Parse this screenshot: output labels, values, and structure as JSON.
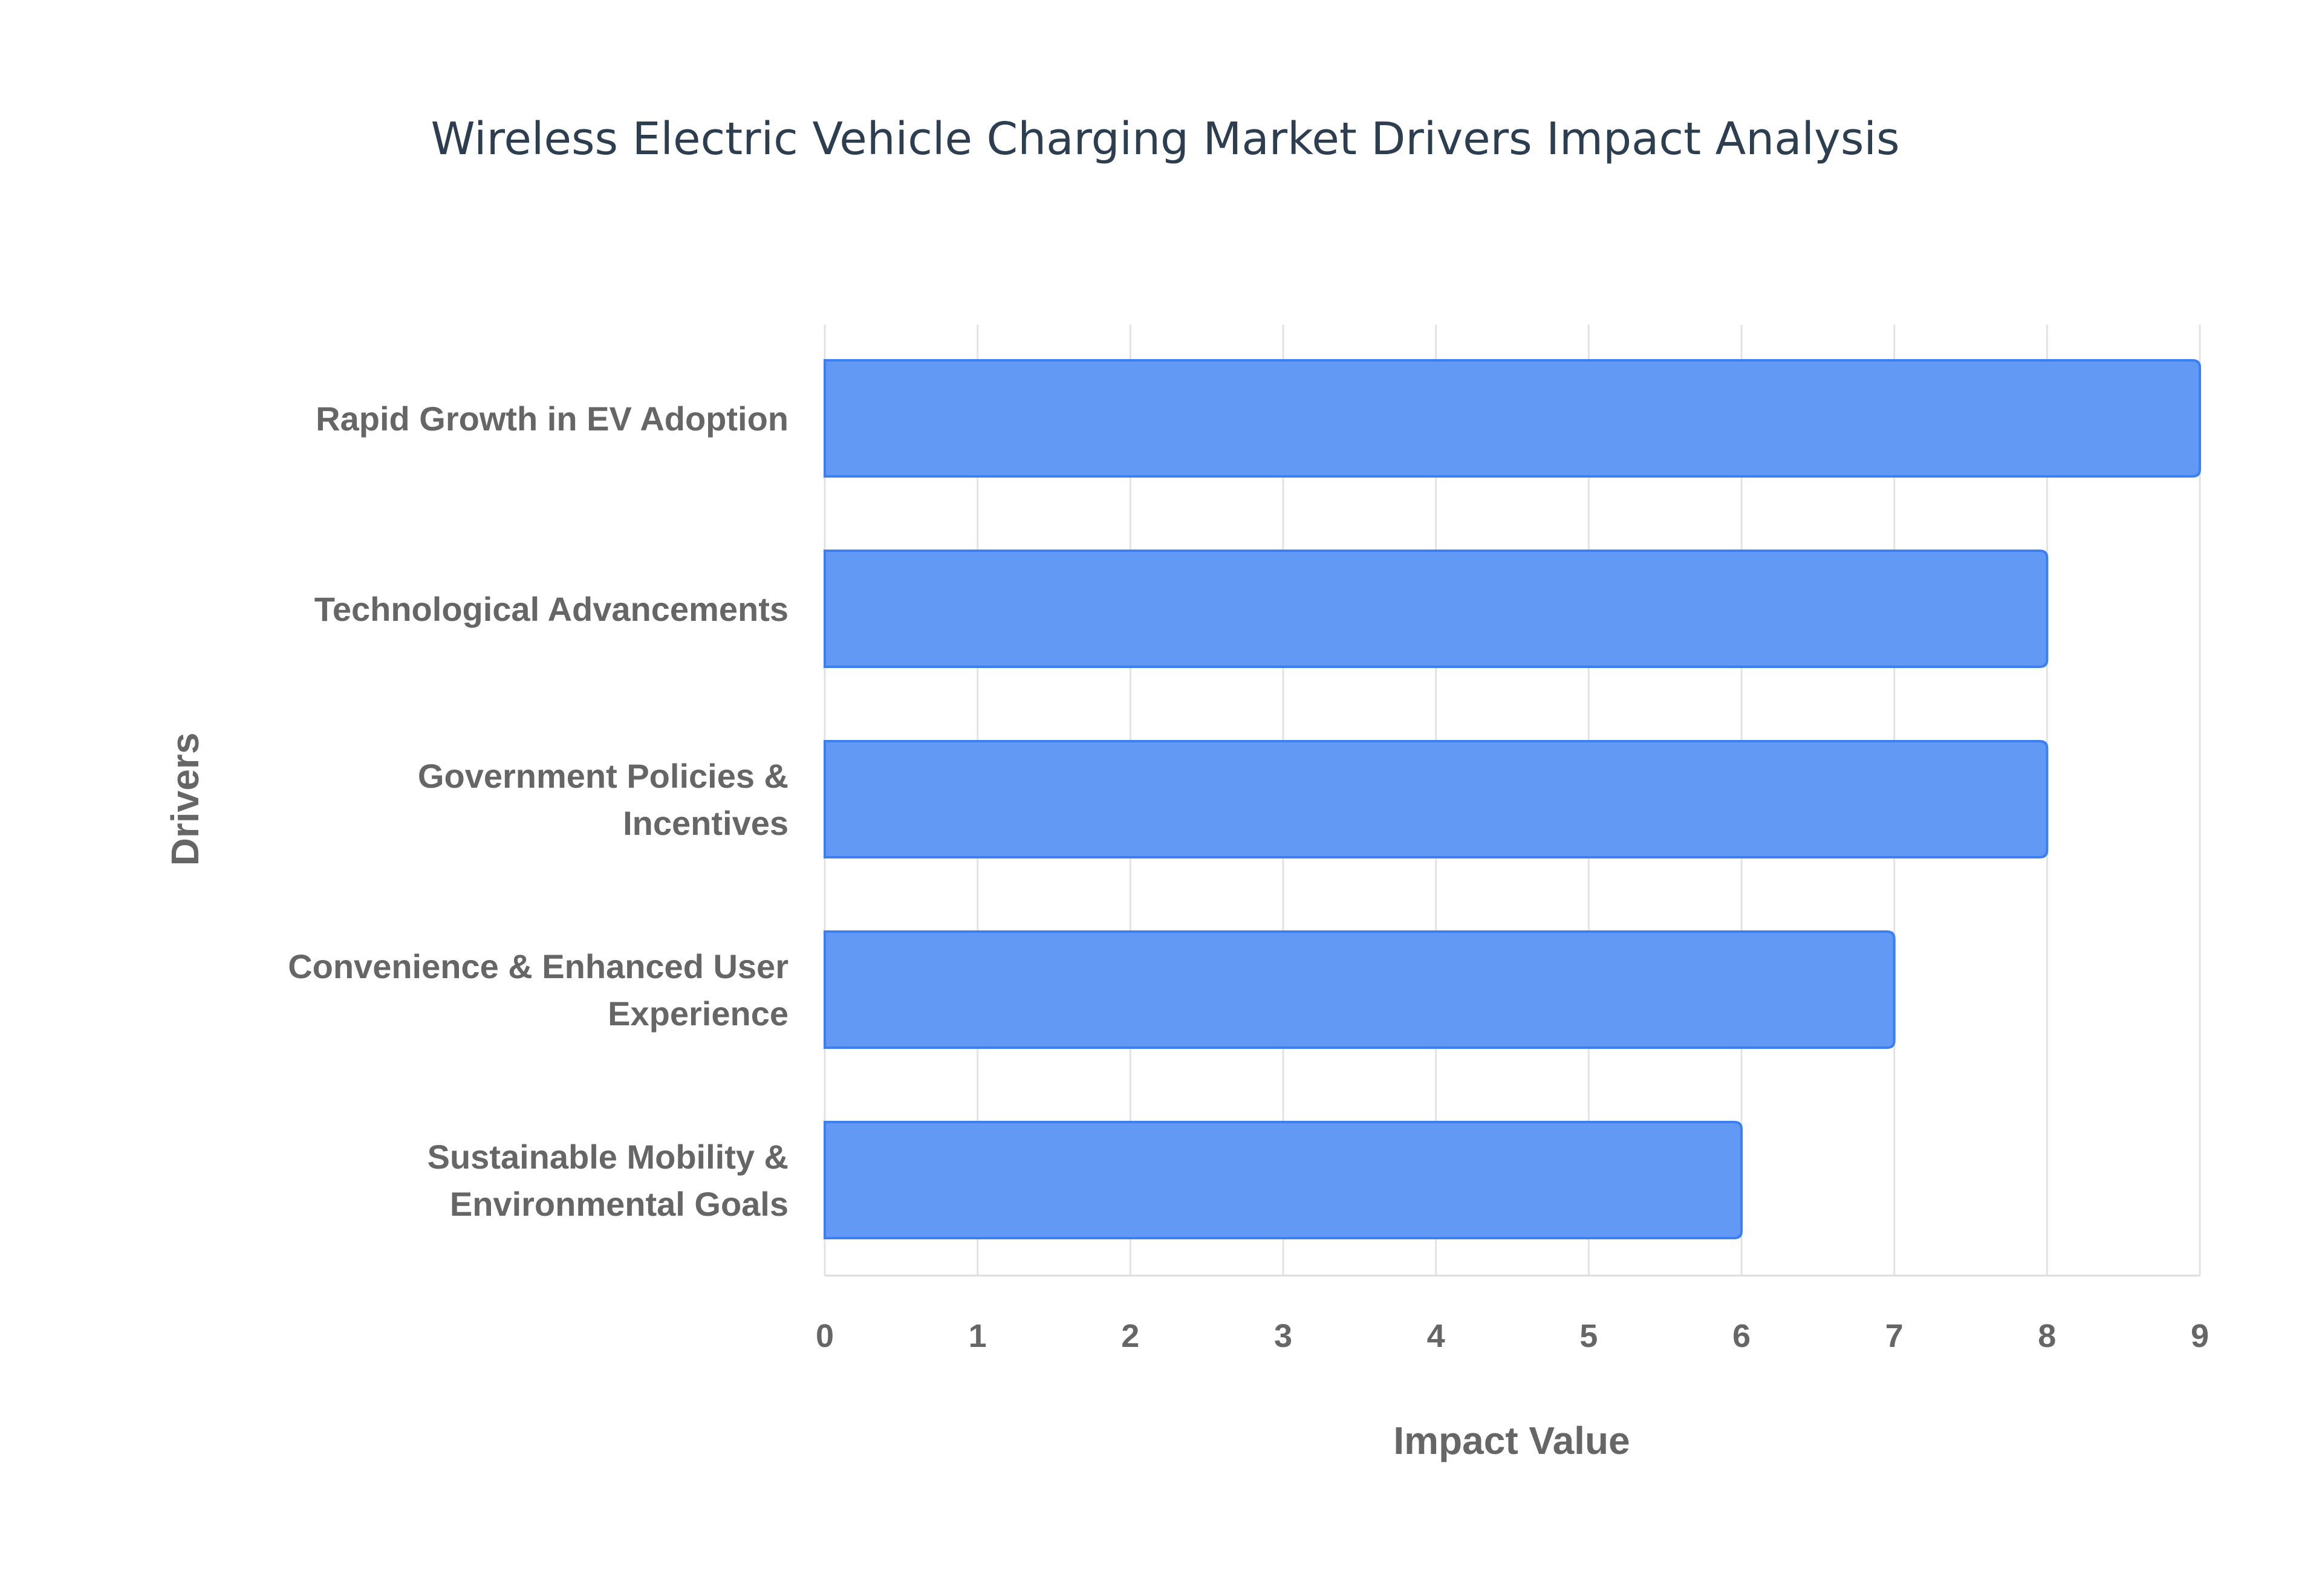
{
  "chart_data": {
    "type": "bar",
    "orientation": "horizontal",
    "title": "Wireless Electric Vehicle Charging Market Drivers Impact Analysis",
    "xlabel": "Impact Value",
    "ylabel": "Drivers",
    "categories": [
      [
        "Rapid Growth in EV Adoption"
      ],
      [
        "Technological Advancements"
      ],
      [
        "Government Policies &",
        "Incentives"
      ],
      [
        "Convenience & Enhanced User",
        "Experience"
      ],
      [
        "Sustainable Mobility &",
        "Environmental Goals"
      ]
    ],
    "values": [
      9,
      8,
      8,
      7,
      6
    ],
    "xlim": [
      0,
      9
    ],
    "xticks": [
      "0",
      "1",
      "2",
      "3",
      "4",
      "5",
      "6",
      "7",
      "8",
      "9"
    ],
    "grid": true,
    "legend": "none",
    "bar_color": "#6199f5",
    "bar_border_color": "#3b7ff0"
  }
}
